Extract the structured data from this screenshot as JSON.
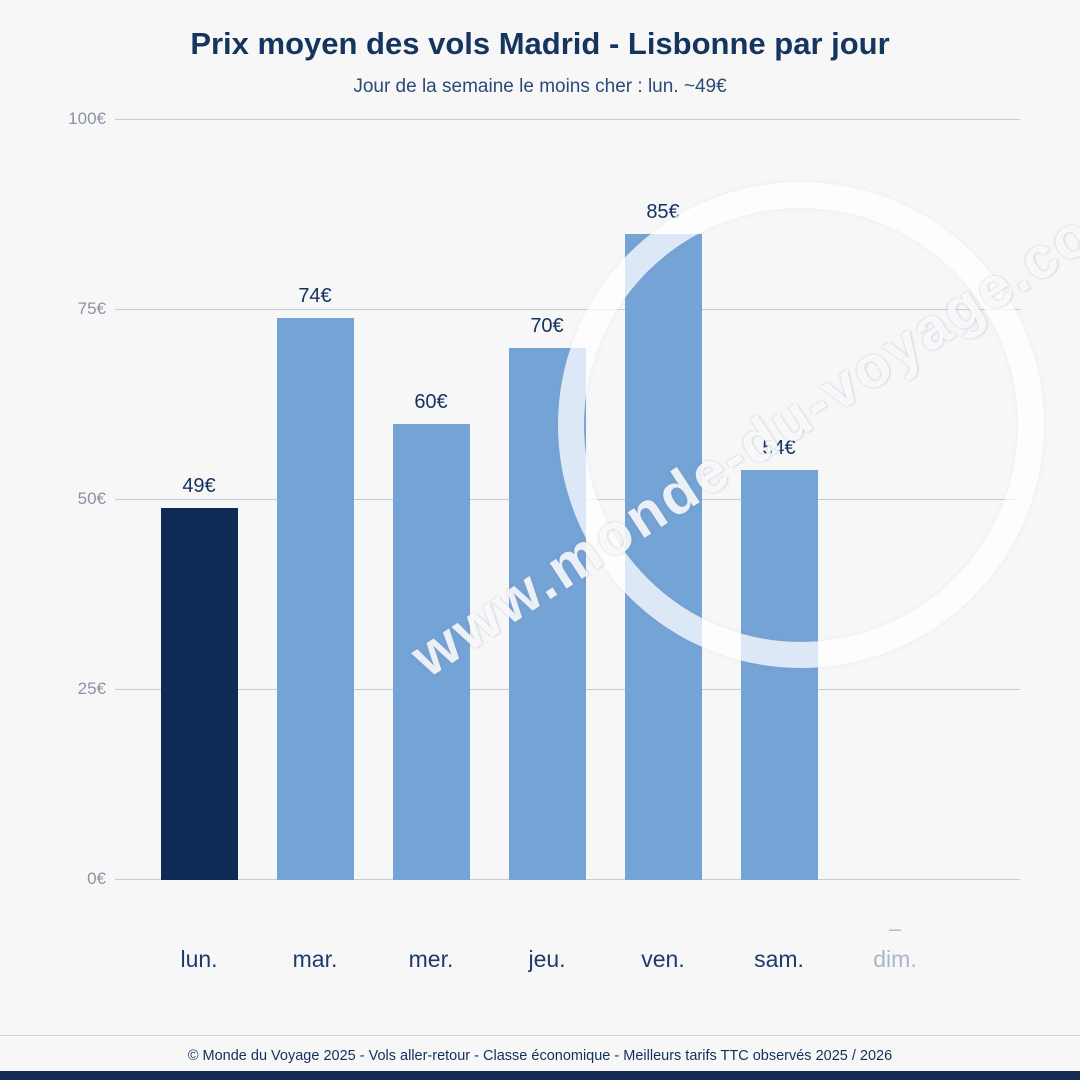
{
  "title": "Prix moyen des vols Madrid - Lisbonne par jour",
  "subtitle": "Jour de la semaine le moins cher : lun. ~49€",
  "watermark": "www.monde-du-voyage.com",
  "footer": {
    "text": "© Monde du Voyage 2025 - Vols aller-retour - Classe économique - Meilleurs tarifs TTC observés 2025 / 2026"
  },
  "colors": {
    "bar": "#74a3d6",
    "bar_highlight": "#102a56",
    "title": "#16355e",
    "gridline": "#c7ccd8",
    "background": "#f7f7f8",
    "footer_accent": "#142a52"
  },
  "chart_data": {
    "type": "bar",
    "title": "Prix moyen des vols Madrid - Lisbonne par jour",
    "subtitle": "Jour de la semaine le moins cher : lun. ~49€",
    "categories": [
      "lun.",
      "mar.",
      "mer.",
      "jeu.",
      "ven.",
      "sam.",
      "dim."
    ],
    "values": [
      49,
      74,
      60,
      70,
      85,
      54,
      null
    ],
    "value_labels": [
      "49€",
      "74€",
      "60€",
      "70€",
      "85€",
      "54€",
      ""
    ],
    "highlight_index": 0,
    "no_data_marker": "–",
    "ylim": [
      0,
      100
    ],
    "grid": true,
    "legend": "none",
    "yticks": [
      {
        "value": 0,
        "label": "0€"
      },
      {
        "value": 25,
        "label": "25€"
      },
      {
        "value": 50,
        "label": "50€"
      },
      {
        "value": 75,
        "label": "75€"
      },
      {
        "value": 100,
        "label": "100€"
      }
    ]
  }
}
